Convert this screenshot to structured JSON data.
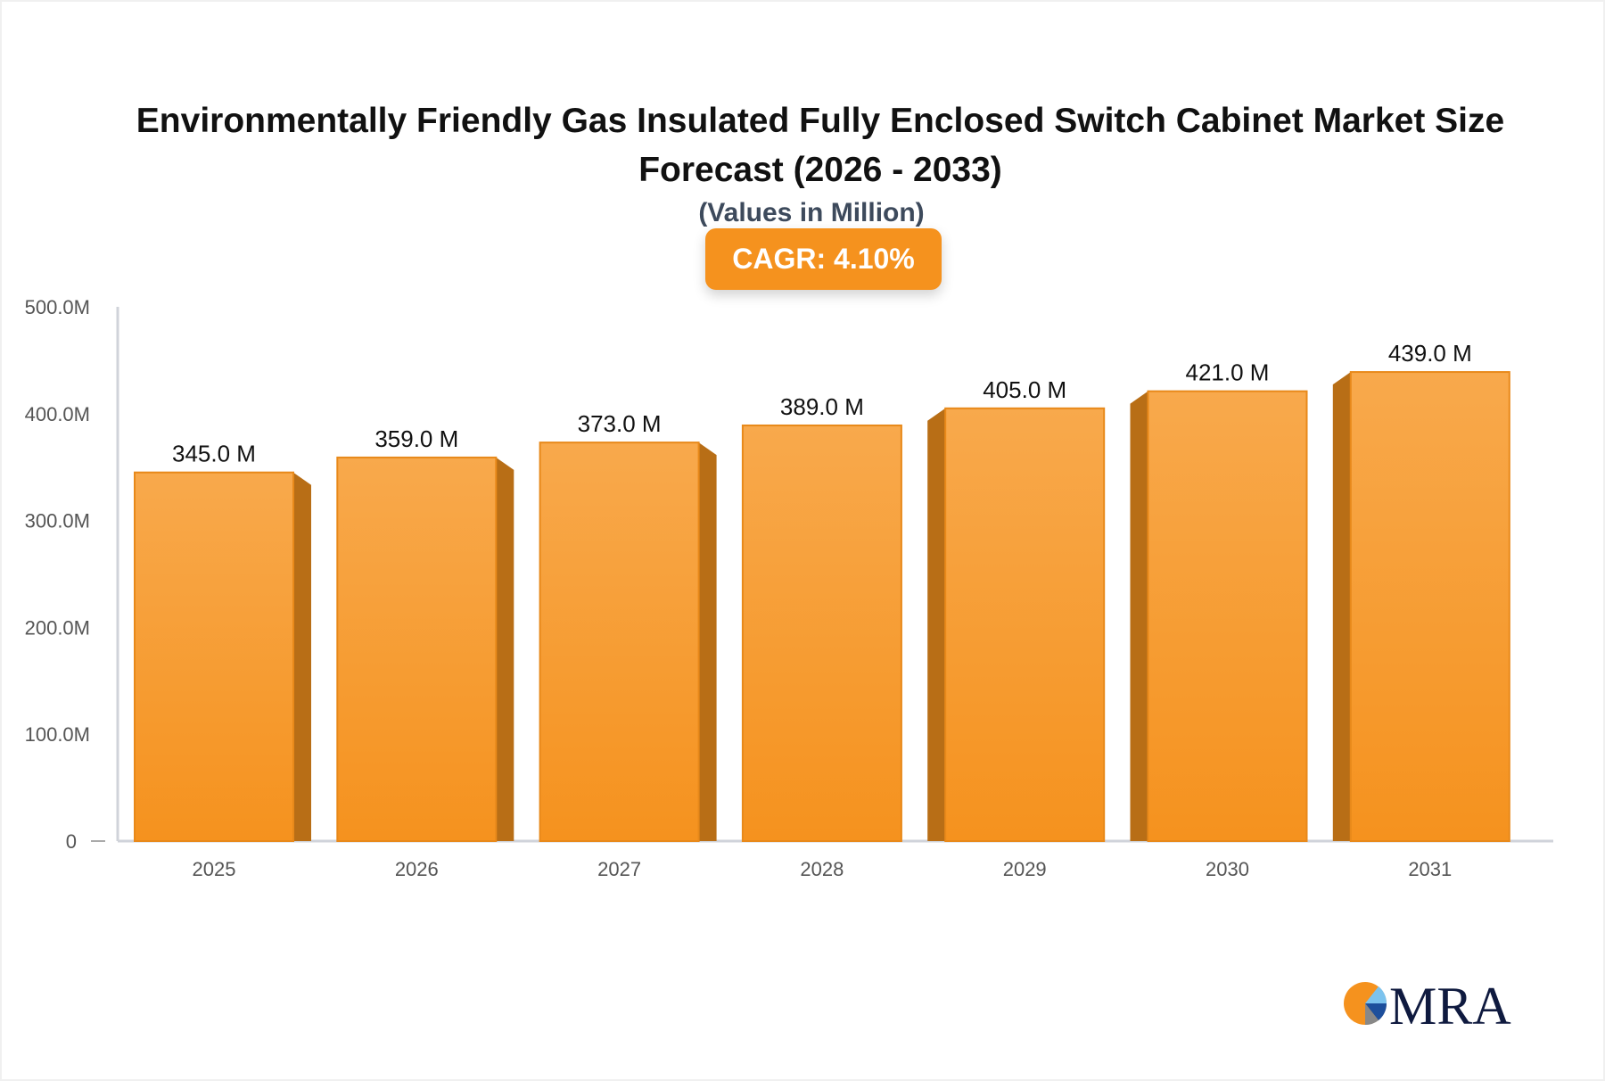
{
  "chart_data": {
    "type": "bar",
    "title": "Environmentally Friendly Gas Insulated Fully Enclosed Switch Cabinet Market Size Forecast (2026 - 2033)",
    "subtitle": "(Values in Million)",
    "badge": "CAGR: 4.10%",
    "categories": [
      "2025",
      "2026",
      "2027",
      "2028",
      "2029",
      "2030",
      "2031"
    ],
    "values": [
      345.0,
      359.0,
      373.0,
      389.0,
      405.0,
      421.0,
      439.0
    ],
    "data_labels": [
      "345.0 M",
      "359.0 M",
      "373.0 M",
      "389.0 M",
      "405.0 M",
      "421.0 M",
      "439.0 M"
    ],
    "yticks": [
      0,
      100,
      200,
      300,
      400,
      500
    ],
    "ytick_labels": [
      "0",
      "100.0M",
      "200.0M",
      "300.0M",
      "400.0M",
      "500.0M"
    ],
    "ylim": [
      0,
      500
    ],
    "xlabel": "",
    "ylabel": "",
    "grid": false,
    "colors": {
      "bar_top": "#f8a94c",
      "bar_bottom": "#f5921e",
      "bar_side": "#b86e16",
      "axis": "#d0d3da",
      "badge": "#f5921e"
    }
  },
  "logo": {
    "text": "MRA"
  }
}
